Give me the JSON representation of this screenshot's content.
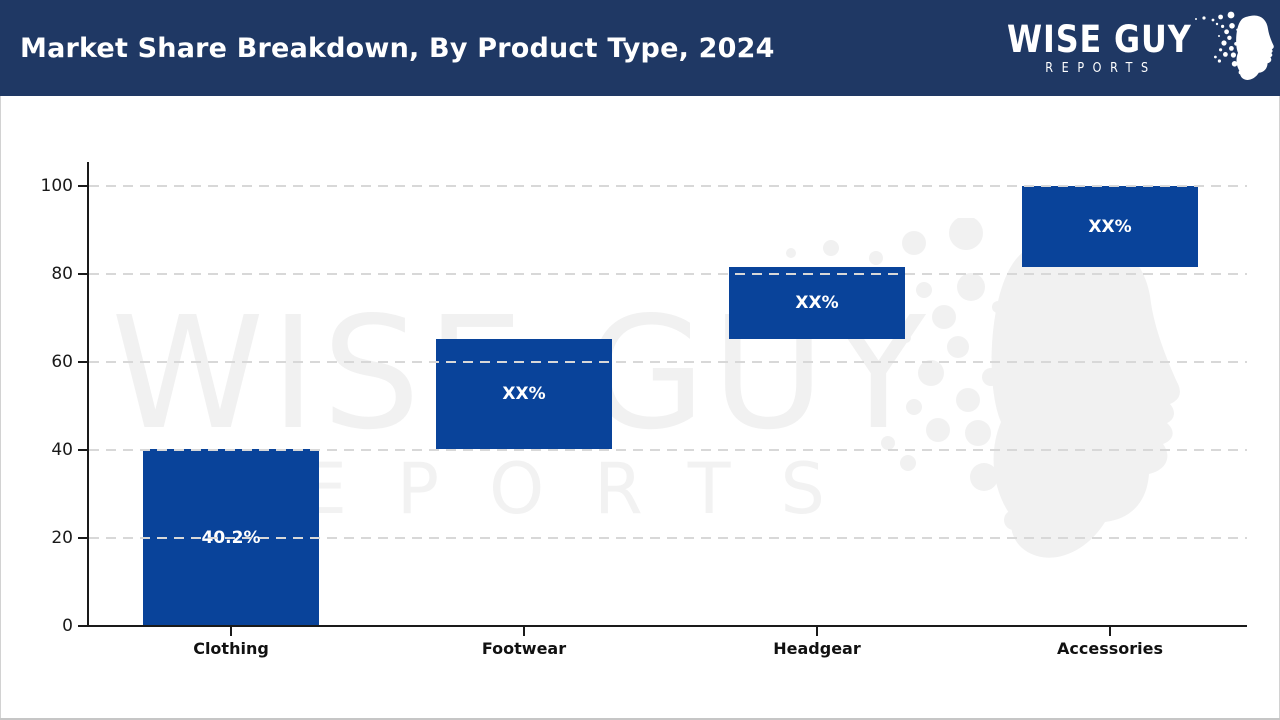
{
  "header": {
    "title": "Market Share Breakdown, By Product Type, 2024",
    "background_color": "#1f3864",
    "logo": {
      "line1": "WISE GUY",
      "line2": "REPORTS"
    }
  },
  "watermark": {
    "line1": "WISE GUY",
    "line2": "REPORTS"
  },
  "chart_data": {
    "type": "bar",
    "subtype": "waterfall",
    "title": "Market Share Breakdown, By Product Type, 2024",
    "categories": [
      "Clothing",
      "Footwear",
      "Headgear",
      "Accessories"
    ],
    "series": [
      {
        "name": "Market share (%)",
        "segments": [
          {
            "category": "Clothing",
            "start": 0,
            "end": 40.2,
            "label": "40.2%"
          },
          {
            "category": "Footwear",
            "start": 40.2,
            "end": 65.2,
            "label": "XX%"
          },
          {
            "category": "Headgear",
            "start": 65.2,
            "end": 81.5,
            "label": "XX%"
          },
          {
            "category": "Accessories",
            "start": 81.5,
            "end": 100,
            "label": "XX%"
          }
        ]
      }
    ],
    "xlabel": "",
    "ylabel": "",
    "ylim": [
      0,
      100
    ],
    "yticks": [
      "0",
      "20",
      "40",
      "60",
      "80",
      "100"
    ],
    "grid": "horizontal-dashed",
    "grid_color": "#d8d8d8",
    "legend": "none",
    "bar_color": "#09439a",
    "bar_label_color": "#ffffff"
  }
}
